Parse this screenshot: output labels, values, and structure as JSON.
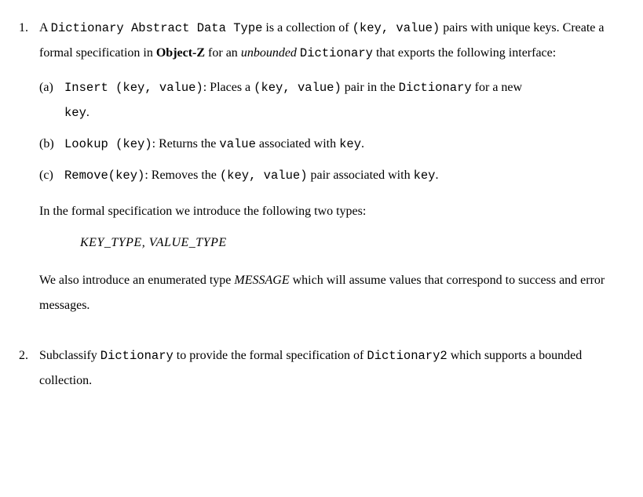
{
  "q1": {
    "intro_a": "A ",
    "tt_dadt": "Dictionary Abstract Data Type",
    "intro_b": " is a collection of ",
    "tt_kv": "(key, value)",
    "intro_c": " pairs with unique keys.  Create a formal specification in ",
    "bold_objz": "Object-Z",
    "intro_d": " for an ",
    "it_unbounded": "unbounded",
    "intro_e": " ",
    "tt_dict": "Dictionary",
    "intro_f": " that exports the following interface:",
    "a": {
      "tt_op": "Insert (key, value)",
      "colon": ": Places a ",
      "tt_kv": "(key, value)",
      "mid": " pair in the ",
      "tt_dict": "Dictionary",
      "tail": " for a new ",
      "tt_key": "key",
      "period": "."
    },
    "b": {
      "tt_op": "Lookup (key)",
      "colon": ": Returns the ",
      "tt_value": "value",
      "mid": " associated with ",
      "tt_key": "key",
      "period": "."
    },
    "c": {
      "tt_op": "Remove(key)",
      "colon": ": Removes the ",
      "tt_kv": "(key, value)",
      "mid": " pair associated with ",
      "tt_key": "key",
      "period": "."
    },
    "types_intro": "In the formal specification we introduce the following two types:",
    "types_key": "KEY",
    "underscore": "_",
    "types_type1": "TYPE",
    "comma": ", ",
    "types_val": "VALUE",
    "types_type2": "TYPE",
    "enum_a": "We also introduce an enumerated type ",
    "it_message": "MESSAGE",
    "enum_b": " which will assume values that cor",
    "enum_c": "respond to success and error messages."
  },
  "q2": {
    "a": "Subclassify ",
    "tt_dict": "Dictionary",
    "b": " to provide the formal specification of ",
    "tt_dict2": "Dictionary2",
    "c": " which sup",
    "d": "ports a bounded collection."
  }
}
